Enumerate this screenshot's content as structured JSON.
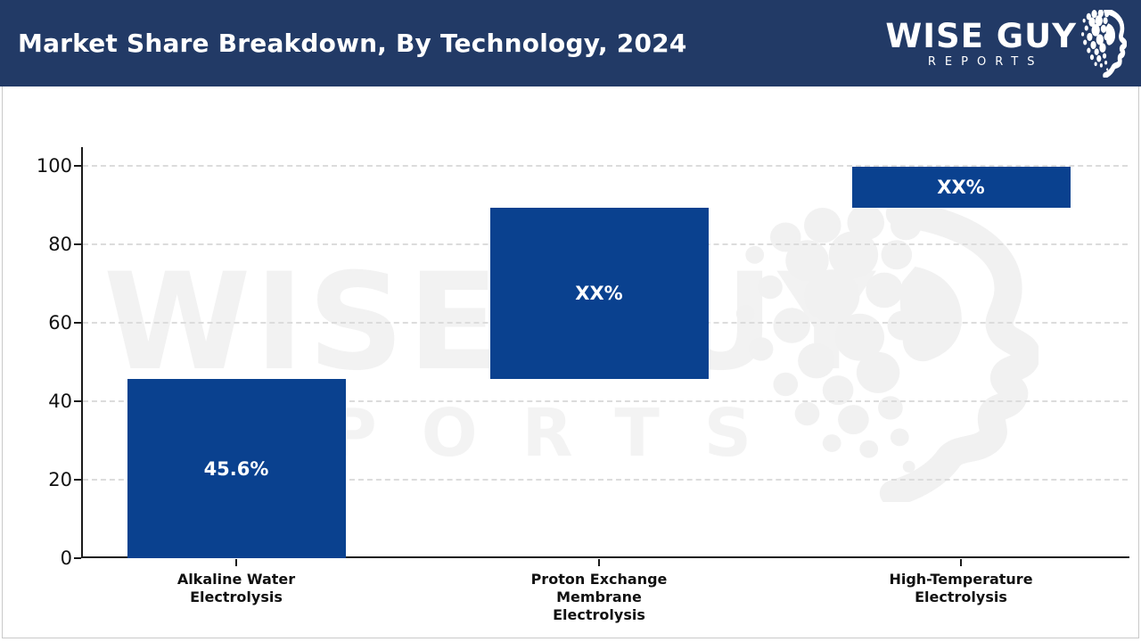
{
  "header": {
    "title": "Market Share Breakdown, By Technology, 2024",
    "logo": {
      "name": "WISE GUY",
      "sub": "REPORTS"
    }
  },
  "watermark": {
    "name": "WISE GUY",
    "sub": "REPORTS"
  },
  "chart_data": {
    "type": "bar",
    "subtype": "floating-segment-breakdown",
    "title": "Market Share Breakdown, By Technology, 2024",
    "categories": [
      "Alkaline Water Electrolysis",
      "Proton Exchange Membrane Electrolysis",
      "High-Temperature Electrolysis"
    ],
    "category_lines": [
      [
        "Alkaline Water",
        "Electrolysis"
      ],
      [
        "Proton Exchange",
        "Membrane",
        "Electrolysis"
      ],
      [
        "High-Temperature",
        "Electrolysis"
      ]
    ],
    "segments": [
      {
        "category": "Alkaline Water Electrolysis",
        "start": 0,
        "end": 45.6,
        "label": "45.6%"
      },
      {
        "category": "Proton Exchange Membrane Electrolysis",
        "start": 45.6,
        "end": 89.4,
        "label": "XX%"
      },
      {
        "category": "High-Temperature Electrolysis",
        "start": 89.4,
        "end": 99.8,
        "label": "XX%"
      }
    ],
    "values_masked_note": "Second and third segment values are masked as XX% in the image",
    "yticks": [
      0,
      20,
      40,
      60,
      80,
      100
    ],
    "ylim": [
      0,
      104
    ],
    "xlabel": "",
    "ylabel": "",
    "grid": "horizontal-dashed",
    "legend": "none",
    "bar_color": "#0A418F",
    "bar_label_color": "#ffffff"
  },
  "colors": {
    "header_bg": "#223A66",
    "bar": "#0A418F",
    "grid": "#dcdcdc",
    "axis": "#1a1a1a",
    "watermark": "#f2f2f2",
    "panel_border": "#c9c9c9"
  }
}
